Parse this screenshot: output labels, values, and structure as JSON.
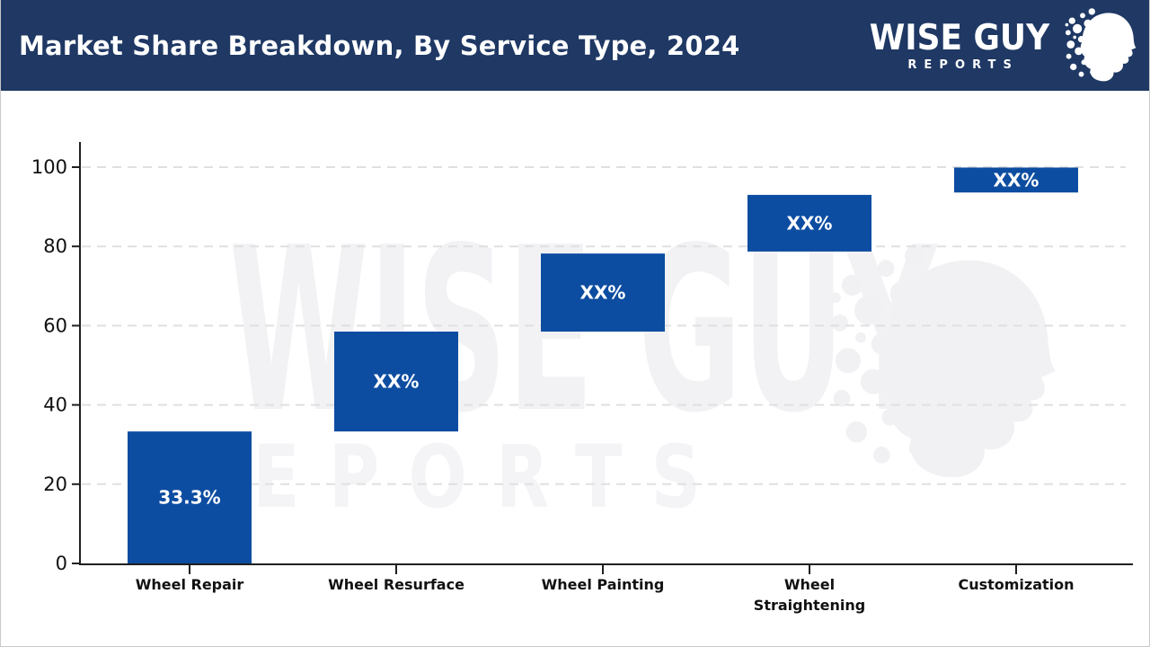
{
  "header": {
    "title": "Market Share Breakdown, By Service Type, 2024",
    "logo": {
      "wordmark": "WISE GUY",
      "subtext": "REPORTS"
    }
  },
  "watermark": {
    "line1": "WISE GUY",
    "line2": "REPORTS"
  },
  "chart_data": {
    "type": "bar",
    "variant": "waterfall",
    "title": "Market Share Breakdown, By Service Type, 2024",
    "categories": [
      {
        "label": "Wheel Repair",
        "lines": [
          "Wheel Repair"
        ],
        "start": 0,
        "end": 33.3,
        "value_label": "33.3%"
      },
      {
        "label": "Wheel Resurface",
        "lines": [
          "Wheel Resurface"
        ],
        "start": 33.3,
        "end": 58.5,
        "value_label": "XX%"
      },
      {
        "label": "Wheel Painting",
        "lines": [
          "Wheel Painting"
        ],
        "start": 58.5,
        "end": 78.2,
        "value_label": "XX%"
      },
      {
        "label": "Wheel Straightening",
        "lines": [
          "Wheel",
          "Straightening"
        ],
        "start": 78.7,
        "end": 93.0,
        "value_label": "XX%"
      },
      {
        "label": "Customization",
        "lines": [
          "Customization"
        ],
        "start": 93.6,
        "end": 99.9,
        "value_label": "XX%"
      }
    ],
    "yticks": [
      0,
      20,
      40,
      60,
      80,
      100
    ],
    "ylim": [
      0,
      107
    ],
    "xlabel": "",
    "ylabel": "",
    "grid": {
      "axis": "y",
      "style": "dashed"
    },
    "legend": "none",
    "colors": {
      "bar": "#0d4da1",
      "bar_label": "#ffffff",
      "header_bg": "#1f3864",
      "header_text": "#ffffff",
      "axis": "#1f1f1f",
      "gridline": "#e0e0e0",
      "tick_label": "#111111",
      "watermark": "#f2f2f5"
    }
  }
}
